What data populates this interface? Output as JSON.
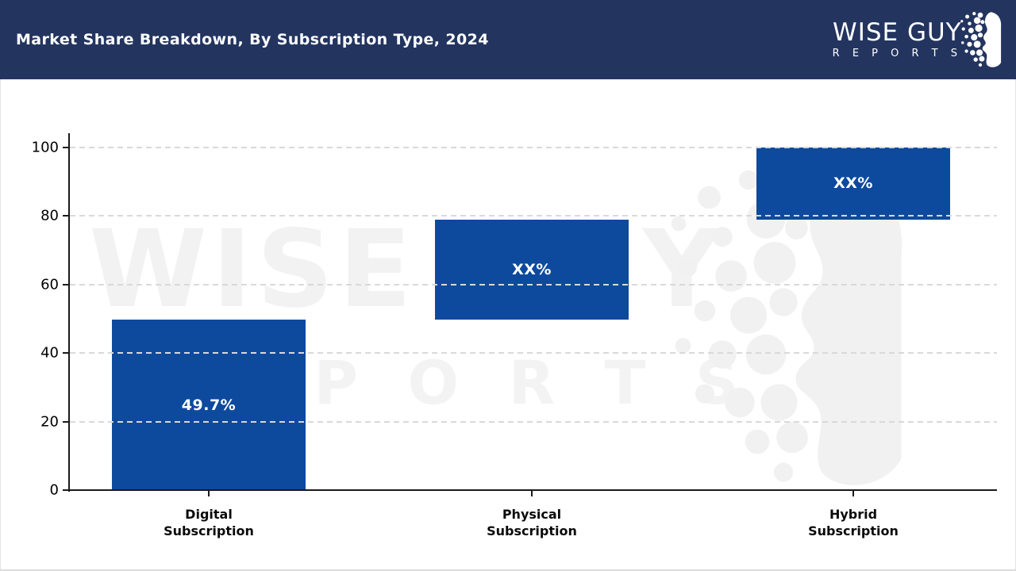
{
  "header": {
    "title": "Market Share Breakdown, By Subscription Type, 2024",
    "logo": {
      "line1": "WISE GUY",
      "line2": "R E P O R T S"
    }
  },
  "watermark": {
    "line1": "WISE GUY",
    "line2": "R E P O R T S"
  },
  "chart_data": {
    "type": "bar",
    "subtype": "waterfall",
    "title": "Market Share Breakdown, By Subscription Type, 2024",
    "categories": [
      "Digital\nSubscription",
      "Physical\nSubscription",
      "Hybrid\nSubscription"
    ],
    "segments": [
      {
        "category": "Digital Subscription",
        "start": 0,
        "end": 49.7,
        "label": "49.7%"
      },
      {
        "category": "Physical Subscription",
        "start": 49.7,
        "end": 79,
        "label": "XX%"
      },
      {
        "category": "Hybrid Subscription",
        "start": 79,
        "end": 100,
        "label": "XX%"
      }
    ],
    "yticks": [
      0,
      20,
      40,
      60,
      80,
      100
    ],
    "ylim": [
      0,
      104
    ],
    "xlabel": "",
    "ylabel": "",
    "grid": true,
    "grid_style": "dashed",
    "legend": false,
    "colors": {
      "bar": "#0d4a9e",
      "bar_label": "#ffffff",
      "axis": "#1a1a1a",
      "grid": "#d9d9d9",
      "header_bg": "#23345f",
      "watermark": "#f2f2f2"
    }
  }
}
